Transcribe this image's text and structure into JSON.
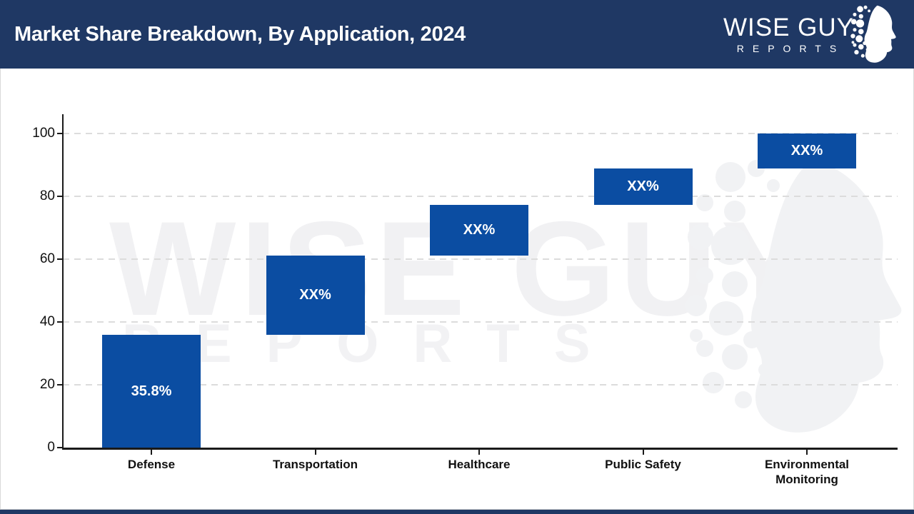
{
  "header": {
    "title": "Market Share Breakdown, By Application, 2024",
    "bg_color": "#1f3864",
    "logo": {
      "line1": "WISE GUY",
      "line2": "REPORTS"
    }
  },
  "watermark": {
    "line1": "WISE GUY",
    "line2": "REPORTS"
  },
  "chart_data": {
    "type": "bar",
    "subtype": "waterfall",
    "title": "Market Share Breakdown, By Application, 2024",
    "categories": [
      "Defense",
      "Transportation",
      "Healthcare",
      "Public Safety",
      "Environmental Monitoring"
    ],
    "segments": [
      {
        "category": "Defense",
        "start": 0,
        "end": 35.8,
        "label": "35.8%"
      },
      {
        "category": "Transportation",
        "start": 35.8,
        "end": 61.1,
        "label": "XX%"
      },
      {
        "category": "Healthcare",
        "start": 61.1,
        "end": 77.3,
        "label": "XX%"
      },
      {
        "category": "Public Safety",
        "start": 77.3,
        "end": 88.9,
        "label": "XX%"
      },
      {
        "category": "Environmental Monitoring",
        "start": 88.9,
        "end": 100,
        "label": "XX%"
      }
    ],
    "ylim": [
      0,
      100
    ],
    "yticks": [
      0,
      20,
      40,
      60,
      80,
      100
    ],
    "xlabel": "",
    "ylabel": "",
    "bar_color": "#0b4da2",
    "grid": "horizontal-dashed",
    "legend": "none"
  }
}
